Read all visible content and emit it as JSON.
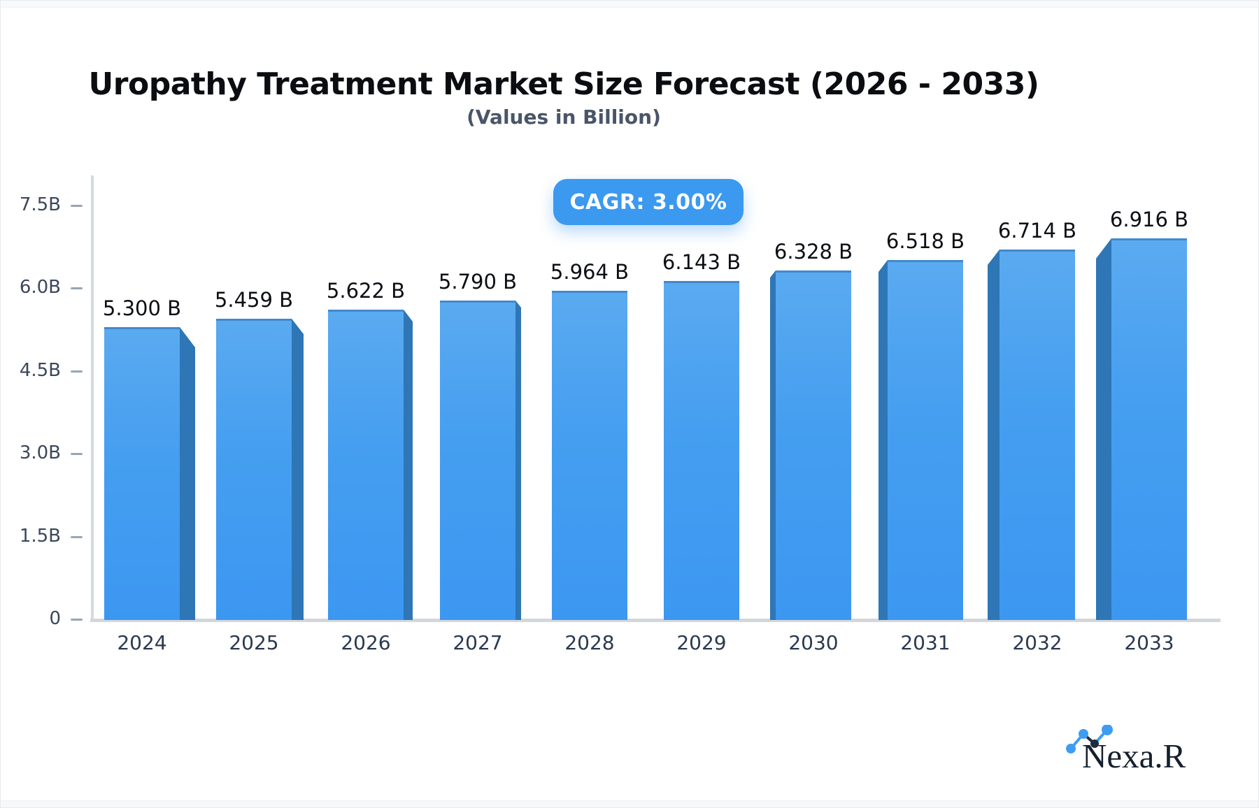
{
  "title": "Uropathy Treatment Market Size Forecast (2026 - 2033)",
  "subtitle": "(Values in Billion)",
  "cagr_badge": "CAGR: 3.00%",
  "brand": {
    "name": "Nexa.R",
    "icon": "line-chart-dots-icon"
  },
  "colors": {
    "accent_blue": "#3b99f0",
    "bar_face_top": "#5aaaf0",
    "bar_face_bottom": "#3c97f1",
    "bar_side_dark": "#2e76b5",
    "axis_gray": "#d6dade",
    "tick_text": "#3b475a",
    "year_text": "#2b3950",
    "value_text": "#0c0f14",
    "logo_navy": "#15202e"
  },
  "chart_data": {
    "type": "bar",
    "title": "Uropathy Treatment Market Size Forecast (2026 - 2033)",
    "subtitle": "(Values in Billion)",
    "annotation": "CAGR: 3.00%",
    "categories": [
      "2024",
      "2025",
      "2026",
      "2027",
      "2028",
      "2029",
      "2030",
      "2031",
      "2032",
      "2033"
    ],
    "values": [
      5.3,
      5.459,
      5.622,
      5.79,
      5.964,
      6.143,
      6.328,
      6.518,
      6.714,
      6.916
    ],
    "value_labels": [
      "5.300 B",
      "5.459 B",
      "5.622 B",
      "5.790 B",
      "5.964 B",
      "6.143 B",
      "6.328 B",
      "6.518 B",
      "6.714 B",
      "6.916 B"
    ],
    "xlabel": "",
    "ylabel": "",
    "ylim": [
      0,
      7.5
    ],
    "y_ticks": [
      {
        "label": "7.5B",
        "value": 7.5
      },
      {
        "label": "6.0B",
        "value": 6.0
      },
      {
        "label": "4.5B",
        "value": 4.5
      },
      {
        "label": "3.0B",
        "value": 3.0
      },
      {
        "label": "1.5B",
        "value": 1.5
      },
      {
        "label": "0",
        "value": 0
      }
    ],
    "grid": false,
    "legend": false
  }
}
